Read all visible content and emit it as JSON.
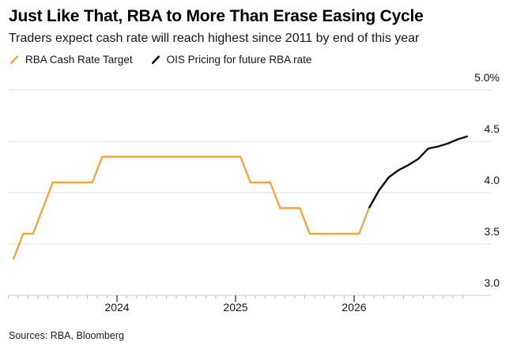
{
  "header": {
    "title": "Just Like That, RBA to More Than Erase Easing Cycle",
    "subtitle": "Traders expect cash rate will reach highest since 2011 by end of this year"
  },
  "legend": {
    "items": [
      {
        "label": "RBA Cash Rate Target",
        "color": "#F8A33B"
      },
      {
        "label": "OIS Pricing for future RBA rate",
        "color": "#0b0b0b"
      }
    ]
  },
  "footer": {
    "sources": "Sources: RBA, Bloomberg"
  },
  "chart_data": {
    "type": "line",
    "title": "Just Like That, RBA to More Than Erase Easing Cycle",
    "subtitle": "Traders expect cash rate will reach highest since 2011 by end of this year",
    "unit": "%",
    "ylim": [
      3.0,
      5.0
    ],
    "grid": "horizontal",
    "legend_position": "top-left",
    "y_axis": {
      "position": "right",
      "tick_labels": [
        "5.0%",
        "4.5",
        "4.0",
        "3.5",
        "3.0"
      ],
      "tick_values": [
        5.0,
        4.5,
        4.0,
        3.5,
        3.0
      ],
      "gridline_values": [
        5.0,
        4.5,
        4.0,
        3.5
      ]
    },
    "x_axis": {
      "start": "2023-02",
      "end": "2026-12",
      "minor_ticks": "monthly",
      "year_labels": [
        "2024",
        "2025",
        "2026"
      ]
    },
    "series": [
      {
        "name": "RBA Cash Rate Target",
        "color": "#F8A33B",
        "points": [
          [
            "2023-02",
            3.35
          ],
          [
            "2023-03",
            3.6
          ],
          [
            "2023-04",
            3.6
          ],
          [
            "2023-05",
            3.85
          ],
          [
            "2023-06",
            4.1
          ],
          [
            "2023-07",
            4.1
          ],
          [
            "2023-08",
            4.1
          ],
          [
            "2023-09",
            4.1
          ],
          [
            "2023-10",
            4.1
          ],
          [
            "2023-11",
            4.35
          ],
          [
            "2023-12",
            4.35
          ],
          [
            "2024-01",
            4.35
          ],
          [
            "2024-02",
            4.35
          ],
          [
            "2024-03",
            4.35
          ],
          [
            "2024-04",
            4.35
          ],
          [
            "2024-05",
            4.35
          ],
          [
            "2024-06",
            4.35
          ],
          [
            "2024-07",
            4.35
          ],
          [
            "2024-08",
            4.35
          ],
          [
            "2024-09",
            4.35
          ],
          [
            "2024-10",
            4.35
          ],
          [
            "2024-11",
            4.35
          ],
          [
            "2024-12",
            4.35
          ],
          [
            "2025-01",
            4.35
          ],
          [
            "2025-02",
            4.1
          ],
          [
            "2025-03",
            4.1
          ],
          [
            "2025-04",
            4.1
          ],
          [
            "2025-05",
            3.85
          ],
          [
            "2025-06",
            3.85
          ],
          [
            "2025-07",
            3.85
          ],
          [
            "2025-08",
            3.6
          ],
          [
            "2025-09",
            3.6
          ],
          [
            "2025-10",
            3.6
          ],
          [
            "2025-11",
            3.6
          ],
          [
            "2025-12",
            3.6
          ],
          [
            "2026-01",
            3.6
          ],
          [
            "2026-02",
            3.85
          ]
        ]
      },
      {
        "name": "OIS Pricing for future RBA rate",
        "color": "#0b0b0b",
        "points": [
          [
            "2026-02",
            3.85
          ],
          [
            "2026-03",
            4.02
          ],
          [
            "2026-04",
            4.15
          ],
          [
            "2026-05",
            4.22
          ],
          [
            "2026-06",
            4.27
          ],
          [
            "2026-07",
            4.33
          ],
          [
            "2026-08",
            4.43
          ],
          [
            "2026-09",
            4.45
          ],
          [
            "2026-10",
            4.48
          ],
          [
            "2026-11",
            4.52
          ],
          [
            "2026-12",
            4.55
          ]
        ]
      }
    ]
  }
}
